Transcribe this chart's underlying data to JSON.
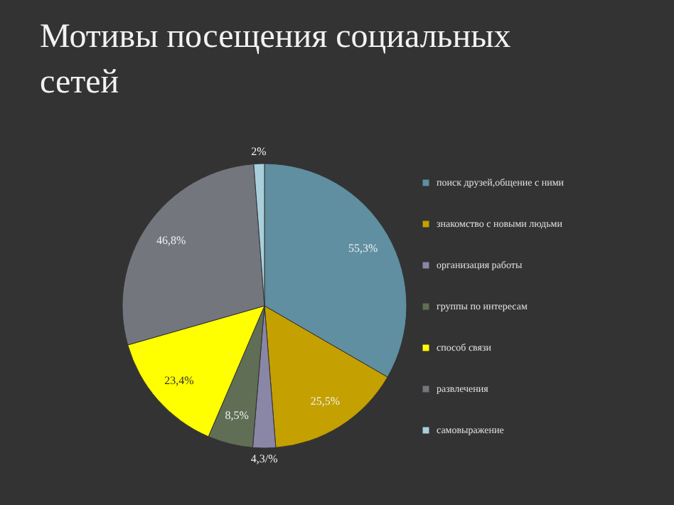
{
  "chart_data": {
    "type": "pie",
    "title": "Мотивы посещения социальных сетей",
    "categories": [
      "поиск друзей,общение с ними",
      "знакомство с новыми людьми",
      "организация работы",
      "группы по интересам",
      "способ связи",
      "развлечения",
      "самовыражение"
    ],
    "values": [
      55.3,
      25.5,
      4.3,
      8.5,
      23.4,
      46.8,
      2
    ],
    "value_labels": [
      "55,3%",
      "25,5%",
      "4,3/%",
      "8,5%",
      "23,4%",
      "46,8%",
      "2%"
    ],
    "colors": [
      "#5f8fa0",
      "#c4a000",
      "#8a86a6",
      "#5f6e55",
      "#ffff00",
      "#74767e",
      "#a9cfdc"
    ],
    "legend": "right"
  }
}
